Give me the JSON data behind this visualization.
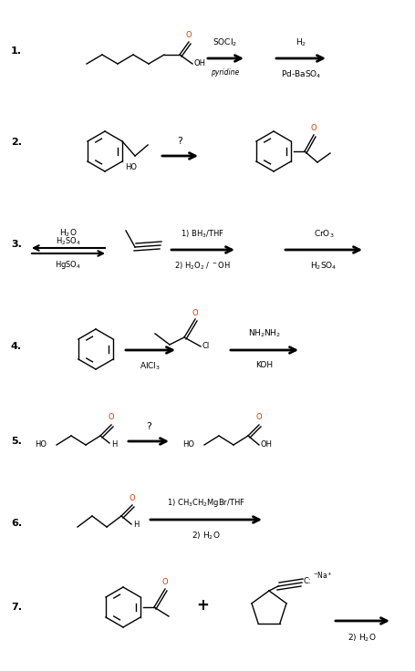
{
  "bg_color": "#ffffff",
  "lw": 1.0,
  "fs_num": 8,
  "fs_label": 6.5,
  "fs_small": 6.0,
  "reactions": [
    "1",
    "2",
    "3",
    "4",
    "5",
    "6",
    "7"
  ]
}
